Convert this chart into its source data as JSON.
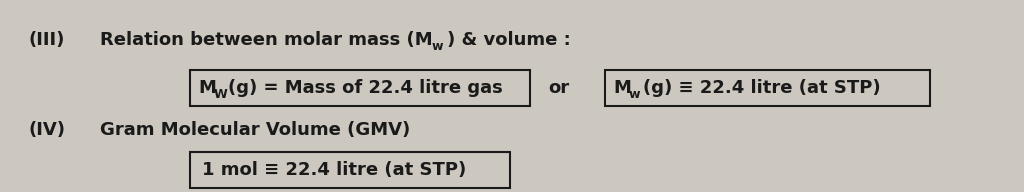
{
  "background_color": "#ccc8c0",
  "text_color": "#1a1a1a",
  "box_edge_color": "#1a1a1a",
  "line1_prefix": "(III)   Relation between molar mass (M",
  "line1_sub": "w",
  "line1_suffix": ") & volume :",
  "box1_full": "$M_W$(g) = Mass of 22.4 litre gas",
  "or_text": "or",
  "box2_full": "$M_w$(g) ≡ 22.4 litre (at STP)",
  "line2_text": "(IV)   Gram Molecular Volume (GMV)",
  "box3_full": "1 mol ≡ 22.4 litre (at STP)",
  "fig_width": 10.24,
  "fig_height": 1.92,
  "dpi": 100
}
